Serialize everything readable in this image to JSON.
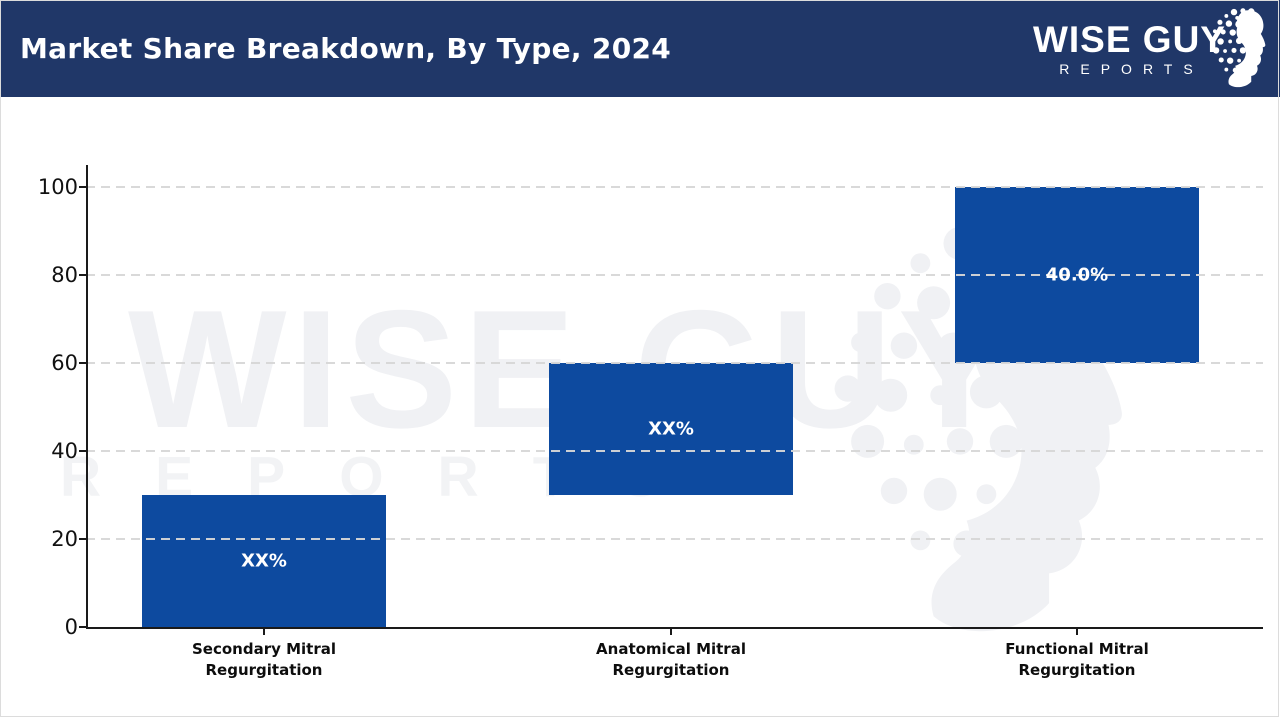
{
  "header": {
    "title": "Market Share Breakdown, By Type, 2024",
    "brand": {
      "line1": "WISE GUY",
      "line2": "REPORTS"
    }
  },
  "watermark": {
    "line1": "WISE GUY",
    "line2": "REPORTS"
  },
  "colors": {
    "header_bg": "#203768",
    "bar": "#0d4a9f",
    "bar_label": "#ffffff",
    "grid": "#d7d7d7",
    "axis": "#1a1a1a",
    "watermark": "#f0f1f4"
  },
  "chart_data": {
    "type": "bar",
    "variant": "floating-segment-waterfall",
    "title": "Market Share Breakdown, By Type, 2024",
    "categories": [
      [
        "Secondary Mitral",
        "Regurgitation"
      ],
      [
        "Anatomical Mitral",
        "Regurgitation"
      ],
      [
        "Functional Mitral",
        "Regurgitation"
      ]
    ],
    "series": [
      {
        "name": "Market Share (%)",
        "segments": [
          {
            "category": "Secondary Mitral Regurgitation",
            "start": 0,
            "end": 30,
            "label": "XX%"
          },
          {
            "category": "Anatomical Mitral Regurgitation",
            "start": 30,
            "end": 60,
            "label": "XX%"
          },
          {
            "category": "Functional Mitral Regurgitation",
            "start": 60,
            "end": 100,
            "label": "40.0%"
          }
        ]
      }
    ],
    "ylim": [
      0,
      100
    ],
    "yticks": [
      0,
      20,
      40,
      60,
      80,
      100
    ],
    "xlabel": "",
    "ylabel": "",
    "grid": {
      "horizontal": true,
      "style": "dashed"
    },
    "legend": "none",
    "bar_color": "#0d4a9f",
    "bar_label_color": "#ffffff"
  }
}
